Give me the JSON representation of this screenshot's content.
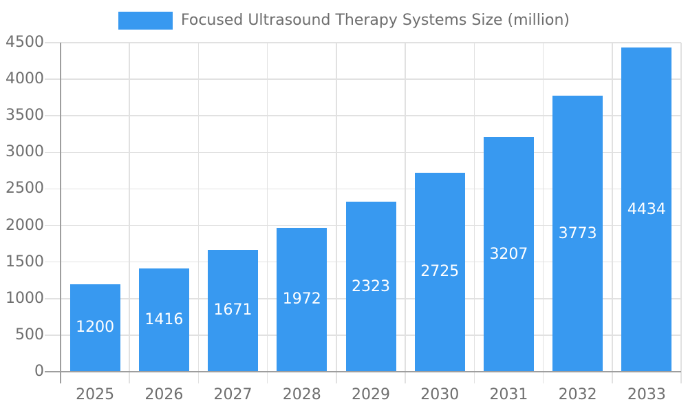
{
  "chart_data": {
    "type": "bar",
    "title": "Focused Ultrasound Therapy Systems Size (million)",
    "legend": "Focused Ultrasound Therapy Systems Size (million)",
    "legend_position": "top",
    "categories": [
      "2025",
      "2026",
      "2027",
      "2028",
      "2029",
      "2030",
      "2031",
      "2032",
      "2033"
    ],
    "values": [
      1200,
      1416,
      1671,
      1972,
      2323,
      2725,
      3207,
      3773,
      4434
    ],
    "ylim": [
      0,
      4500
    ],
    "y_ticks": [
      0,
      500,
      1000,
      1500,
      2000,
      2500,
      3000,
      3500,
      4000,
      4500
    ],
    "xlabel": "",
    "ylabel": "",
    "grid": true,
    "value_labels": "inside-center",
    "colors": {
      "bar": "#3899F0",
      "value_label": "#FFFFFF",
      "tick_label": "#6E6E6E",
      "legend_text": "#6E6E6E",
      "grid_line": "#E1E1E1",
      "axis_line": "#9E9E9E",
      "background": "#FFFFFF"
    }
  }
}
